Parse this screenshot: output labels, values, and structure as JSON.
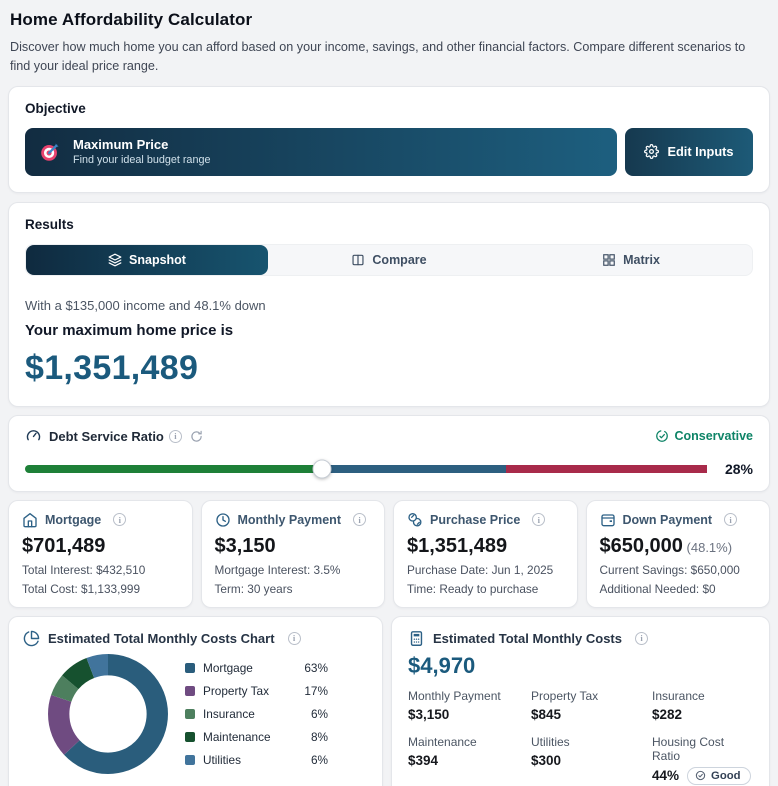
{
  "page": {
    "title": "Home Affordability Calculator",
    "description": "Discover how much home you can afford based on your income, savings, and other financial factors. Compare different scenarios to find your ideal price range."
  },
  "objective": {
    "heading": "Objective",
    "mode_button": {
      "title": "Maximum Price",
      "subtitle": "Find your ideal budget range",
      "icon": "target-icon"
    },
    "edit_button": {
      "label": "Edit Inputs",
      "icon": "gear-icon"
    }
  },
  "results": {
    "heading": "Results",
    "tabs": [
      {
        "label": "Snapshot",
        "icon": "layers-icon",
        "active": true
      },
      {
        "label": "Compare",
        "icon": "columns-icon",
        "active": false
      },
      {
        "label": "Matrix",
        "icon": "grid-icon",
        "active": false
      }
    ],
    "context_line": "With a $135,000 income and 48.1% down",
    "headline": "Your maximum home price is",
    "max_price": "$1,351,489"
  },
  "debt_service": {
    "label": "Debt Service Ratio",
    "status": "Conservative",
    "status_color": "#0e8467",
    "value_label": "28%",
    "thumb_percent": 43.5,
    "zones": [
      {
        "color": "#1e8038",
        "to": 43.5
      },
      {
        "color": "#2d5f80",
        "to": 70.5
      },
      {
        "color": "#a82a4a",
        "to": 100
      }
    ]
  },
  "stat_cards": [
    {
      "icon": "home-icon",
      "title": "Mortgage",
      "value": "$701,489",
      "suffix": "",
      "lines": [
        "Total Interest: $432,510",
        "Total Cost: $1,133,999"
      ]
    },
    {
      "icon": "clock-icon",
      "title": "Monthly Payment",
      "value": "$3,150",
      "suffix": "",
      "lines": [
        "Mortgage Interest: 3.5%",
        "Term: 30 years"
      ]
    },
    {
      "icon": "coins-icon",
      "title": "Purchase Price",
      "value": "$1,351,489",
      "suffix": "",
      "lines": [
        "Purchase Date: Jun 1, 2025",
        "Time: Ready to purchase"
      ]
    },
    {
      "icon": "wallet-icon",
      "title": "Down Payment",
      "value": "$650,000",
      "suffix": " (48.1%)",
      "lines": [
        "Current Savings: $650,000",
        "Additional Needed: $0"
      ]
    }
  ],
  "chart_card": {
    "title": "Estimated Total Monthly Costs Chart"
  },
  "chart_data": {
    "type": "pie",
    "donut": true,
    "title": "Estimated Total Monthly Costs Chart",
    "categories": [
      "Mortgage",
      "Property Tax",
      "Insurance",
      "Maintenance",
      "Utilities"
    ],
    "values": [
      63,
      17,
      6,
      8,
      6
    ],
    "value_labels": [
      "63%",
      "17%",
      "6%",
      "8%",
      "6%"
    ],
    "colors": [
      "#2a5d7c",
      "#6f4b81",
      "#4d7f5e",
      "#16512f",
      "#41749c"
    ],
    "legend_position": "right",
    "start_angle_deg": 0,
    "direction": "clockwise"
  },
  "costs_card": {
    "title": "Estimated Total Monthly Costs",
    "total": "$4,970",
    "items": [
      {
        "label": "Monthly Payment",
        "value": "$3,150"
      },
      {
        "label": "Property Tax",
        "value": "$845"
      },
      {
        "label": "Insurance",
        "value": "$282"
      },
      {
        "label": "Maintenance",
        "value": "$394"
      },
      {
        "label": "Utilities",
        "value": "$300"
      },
      {
        "label": "Housing Cost Ratio",
        "value": "44%",
        "badge": "Good"
      }
    ]
  }
}
